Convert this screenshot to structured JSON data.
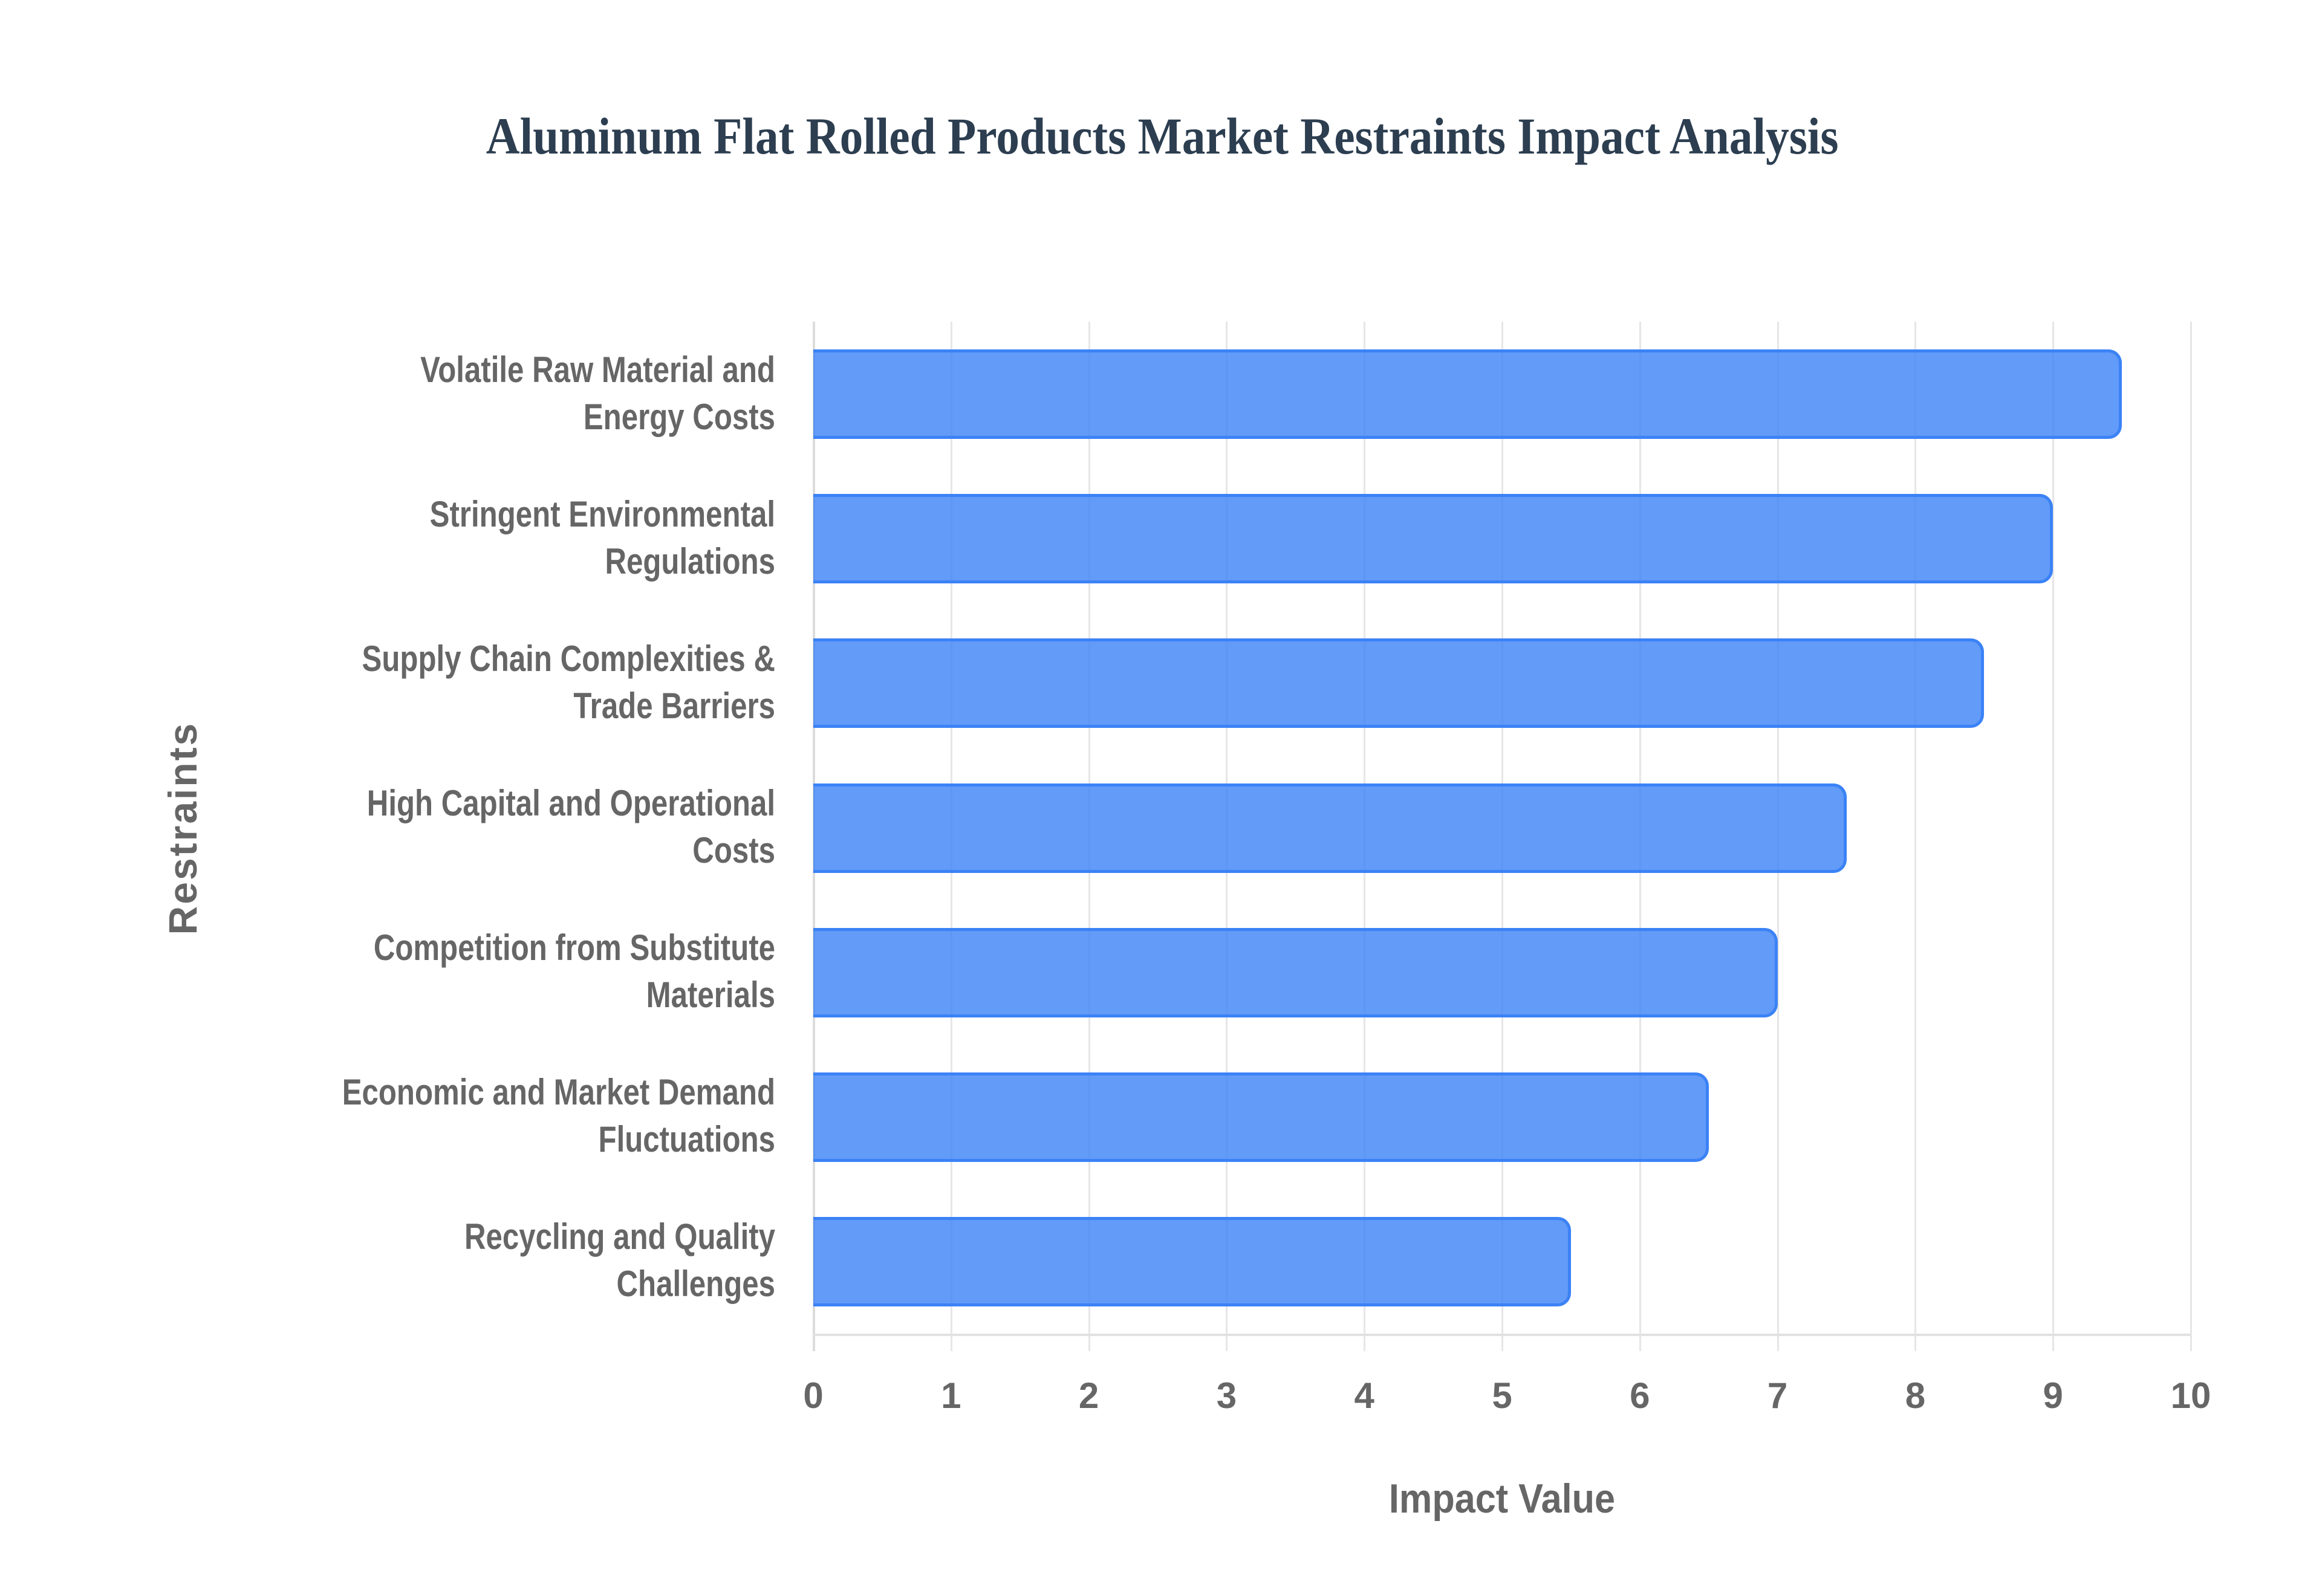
{
  "title": "Aluminum Flat Rolled Products Market Restraints Impact Analysis",
  "colors": {
    "bar_fill": "rgba(59,130,246,0.8)",
    "bar_border": "#3b82f6",
    "title": "#2c3e50",
    "axis_text": "#666666",
    "grid": "#e6e6e6"
  },
  "axes": {
    "x_title": "Impact Value",
    "y_title": "Restraints",
    "x_ticks": [
      "0",
      "1",
      "2",
      "3",
      "4",
      "5",
      "6",
      "7",
      "8",
      "9",
      "10"
    ]
  },
  "categories": [
    {
      "line1": "Volatile Raw Material and",
      "line2": "Energy Costs",
      "value": 9.5
    },
    {
      "line1": "Stringent Environmental",
      "line2": "Regulations",
      "value": 9.0
    },
    {
      "line1": "Supply Chain Complexities &",
      "line2": "Trade Barriers",
      "value": 8.5
    },
    {
      "line1": "High Capital and Operational",
      "line2": "Costs",
      "value": 7.5
    },
    {
      "line1": "Competition from Substitute",
      "line2": "Materials",
      "value": 7.0
    },
    {
      "line1": "Economic and Market Demand",
      "line2": "Fluctuations",
      "value": 6.5
    },
    {
      "line1": "Recycling and Quality",
      "line2": "Challenges",
      "value": 5.5
    }
  ],
  "chart_data": {
    "type": "bar",
    "orientation": "horizontal",
    "title": "Aluminum Flat Rolled Products Market Restraints Impact Analysis",
    "xlabel": "Impact Value",
    "ylabel": "Restraints",
    "categories": [
      "Volatile Raw Material and Energy Costs",
      "Stringent Environmental Regulations",
      "Supply Chain Complexities & Trade Barriers",
      "High Capital and Operational Costs",
      "Competition from Substitute Materials",
      "Economic and Market Demand Fluctuations",
      "Recycling and Quality Challenges"
    ],
    "values": [
      9.5,
      9.0,
      8.5,
      7.5,
      7.0,
      6.5,
      5.5
    ],
    "xlim": [
      0,
      10
    ],
    "x_ticks": [
      0,
      1,
      2,
      3,
      4,
      5,
      6,
      7,
      8,
      9,
      10
    ],
    "grid": {
      "vertical": true,
      "horizontal": false
    },
    "legend": null
  }
}
